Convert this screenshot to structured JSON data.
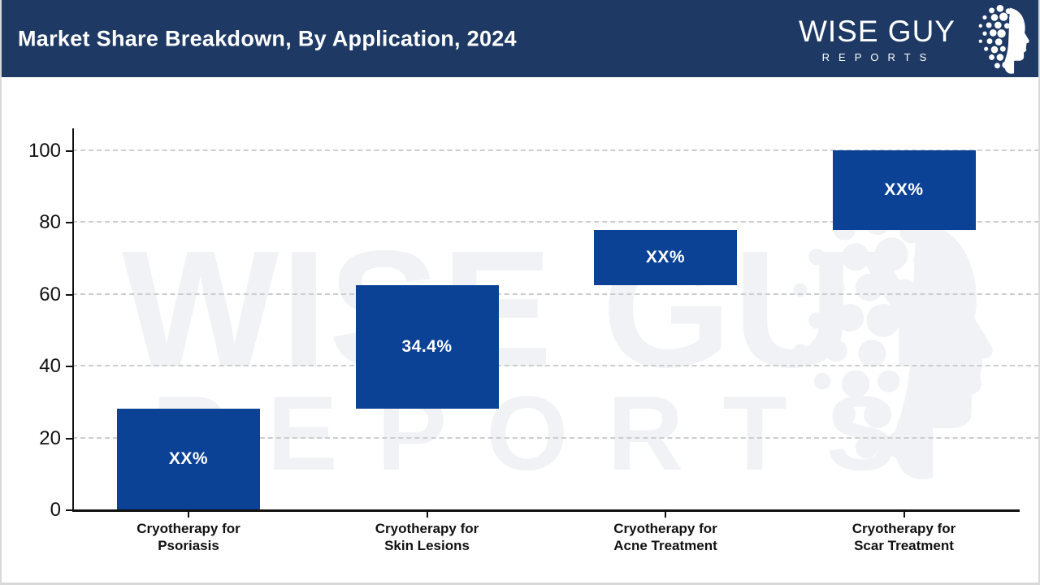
{
  "header": {
    "title": "Market Share Breakdown, By Application, 2024",
    "logo": {
      "line1": "WISE GUY",
      "line2": "REPORTS"
    }
  },
  "watermark": {
    "line1": "WISE GUY",
    "line2": "REPORTS"
  },
  "colors": {
    "header_bg": "#1e3a64",
    "bar_fill": "#0b4296",
    "grid_line": "#cdcdcd",
    "axis_line": "#111111",
    "bar_label_text": "#ffffff",
    "watermark_text": "#f1f2f5"
  },
  "chart_data": {
    "type": "bar",
    "subtype": "floating-segment (waterfall style market share)",
    "title": "Market Share Breakdown, By Application, 2024",
    "categories": [
      [
        "Cryotherapy for",
        "Psoriasis"
      ],
      [
        "Cryotherapy for",
        "Skin Lesions"
      ],
      [
        "Cryotherapy for",
        "Acne Treatment"
      ],
      [
        "Cryotherapy for",
        "Scar Treatment"
      ]
    ],
    "bars": [
      {
        "label": "XX%",
        "start": 0,
        "end": 28.0
      },
      {
        "label": "34.4%",
        "start": 28.0,
        "end": 62.4
      },
      {
        "label": "XX%",
        "start": 62.4,
        "end": 77.8
      },
      {
        "label": "XX%",
        "start": 77.8,
        "end": 100.0
      }
    ],
    "yticks": [
      0,
      20,
      40,
      60,
      80,
      100
    ],
    "ylim": [
      0,
      106.5
    ],
    "xlabel": "",
    "ylabel": "",
    "grid": "horizontal dashed",
    "legend": "none"
  }
}
